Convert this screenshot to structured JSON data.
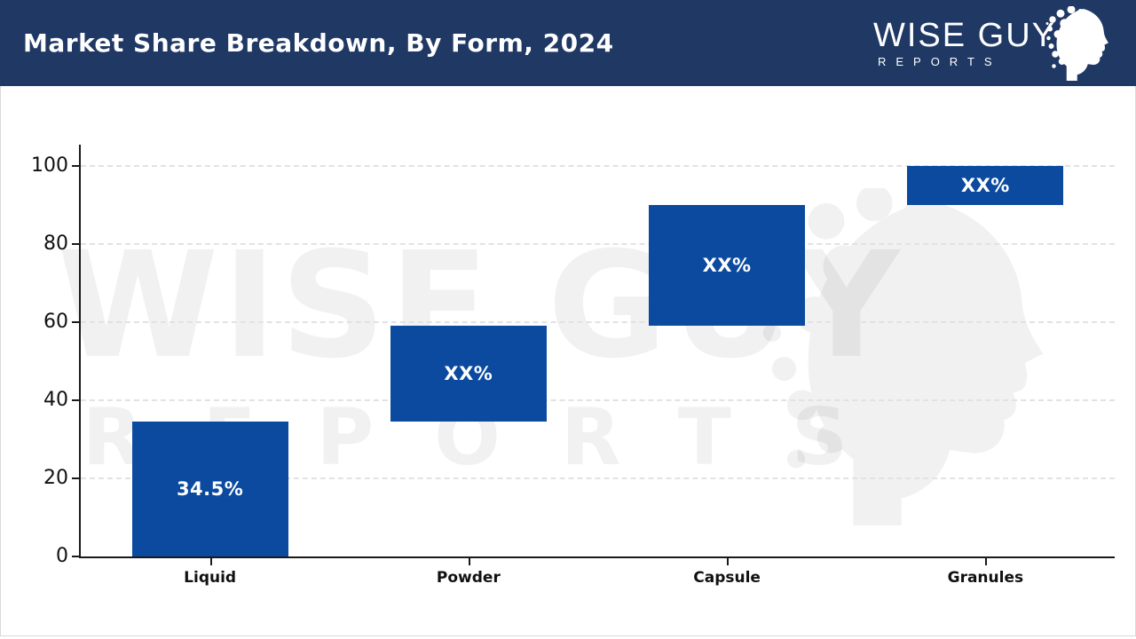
{
  "header": {
    "title": "Market Share Breakdown, By Form, 2024",
    "bg_color": "#1f3864",
    "logo": {
      "line1": "WISE GUY",
      "line2": "REPORTS"
    }
  },
  "watermark": {
    "line1": "WISE GUY",
    "line2": "REPORTS"
  },
  "chart_data": {
    "type": "bar",
    "variant": "waterfall",
    "title": "Market Share Breakdown, By Form, 2024",
    "categories": [
      "Liquid",
      "Powder",
      "Capsule",
      "Granules"
    ],
    "segments": [
      {
        "category": "Liquid",
        "start": 0,
        "end": 34.5,
        "label": "34.5%"
      },
      {
        "category": "Powder",
        "start": 34.5,
        "end": 59,
        "label": "XX%"
      },
      {
        "category": "Capsule",
        "start": 59,
        "end": 90,
        "label": "XX%"
      },
      {
        "category": "Granules",
        "start": 90,
        "end": 100,
        "label": "XX%"
      }
    ],
    "y_ticks": [
      0,
      20,
      40,
      60,
      80,
      100
    ],
    "ylim": [
      0,
      105.5
    ],
    "xlabel": "",
    "ylabel": "",
    "grid": "horizontal-dashed",
    "legend": "none",
    "bar_color": "#0b4a9f",
    "axis_color": "#1a1a1a"
  }
}
